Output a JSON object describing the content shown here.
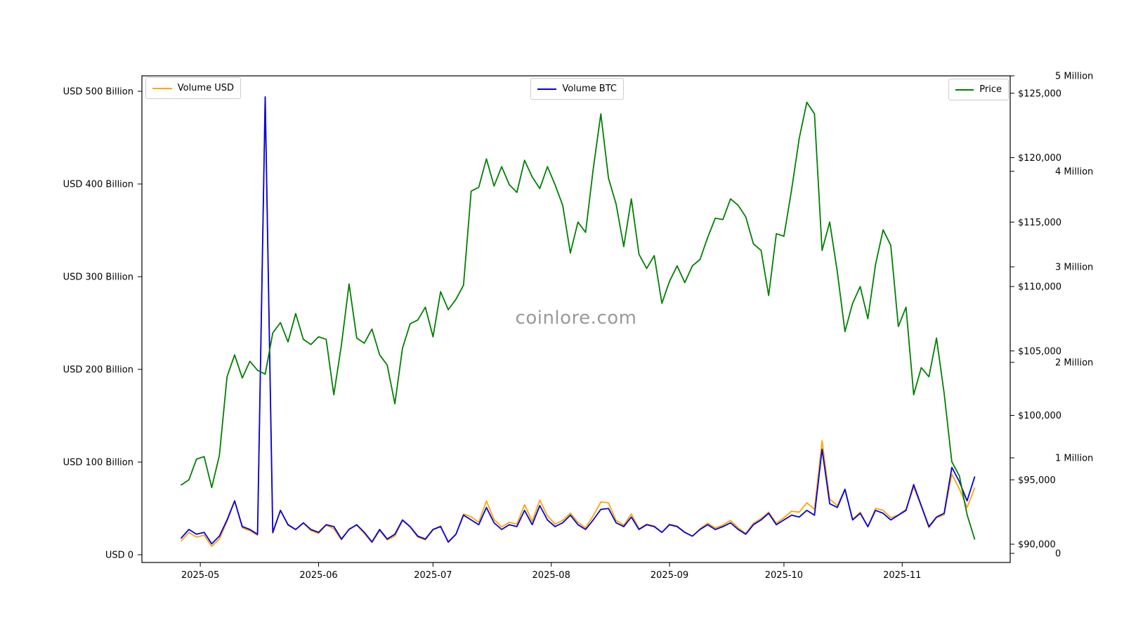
{
  "watermark": "coinlore.com",
  "chart_data": {
    "type": "line",
    "title": "",
    "grid": false,
    "dates": [
      "2025-04-26",
      "2025-04-28",
      "2025-04-30",
      "2025-05-02",
      "2025-05-04",
      "2025-05-06",
      "2025-05-08",
      "2025-05-10",
      "2025-05-12",
      "2025-05-14",
      "2025-05-16",
      "2025-05-18",
      "2025-05-20",
      "2025-05-22",
      "2025-05-24",
      "2025-05-26",
      "2025-05-28",
      "2025-05-30",
      "2025-06-01",
      "2025-06-03",
      "2025-06-05",
      "2025-06-07",
      "2025-06-09",
      "2025-06-11",
      "2025-06-13",
      "2025-06-15",
      "2025-06-17",
      "2025-06-19",
      "2025-06-21",
      "2025-06-23",
      "2025-06-25",
      "2025-06-27",
      "2025-06-29",
      "2025-07-01",
      "2025-07-03",
      "2025-07-05",
      "2025-07-07",
      "2025-07-09",
      "2025-07-11",
      "2025-07-13",
      "2025-07-15",
      "2025-07-17",
      "2025-07-19",
      "2025-07-21",
      "2025-07-23",
      "2025-07-25",
      "2025-07-27",
      "2025-07-29",
      "2025-07-31",
      "2025-08-02",
      "2025-08-04",
      "2025-08-06",
      "2025-08-08",
      "2025-08-10",
      "2025-08-12",
      "2025-08-14",
      "2025-08-16",
      "2025-08-18",
      "2025-08-20",
      "2025-08-22",
      "2025-08-24",
      "2025-08-26",
      "2025-08-28",
      "2025-08-30",
      "2025-09-01",
      "2025-09-03",
      "2025-09-05",
      "2025-09-07",
      "2025-09-09",
      "2025-09-11",
      "2025-09-13",
      "2025-09-15",
      "2025-09-17",
      "2025-09-19",
      "2025-09-21",
      "2025-09-23",
      "2025-09-25",
      "2025-09-27",
      "2025-09-29",
      "2025-10-01",
      "2025-10-03",
      "2025-10-05",
      "2025-10-07",
      "2025-10-09",
      "2025-10-11",
      "2025-10-13",
      "2025-10-15",
      "2025-10-17",
      "2025-10-19",
      "2025-10-21",
      "2025-10-23",
      "2025-10-25",
      "2025-10-27",
      "2025-10-29",
      "2025-10-31",
      "2025-11-02",
      "2025-11-04",
      "2025-11-06",
      "2025-11-08",
      "2025-11-10",
      "2025-11-12",
      "2025-11-14",
      "2025-11-16",
      "2025-11-18",
      "2025-11-20"
    ],
    "series": [
      {
        "name": "Volume USD",
        "axis": "usd",
        "unit": "billion USD",
        "color": "#FFA500",
        "values": [
          15,
          24,
          19,
          21,
          9,
          17,
          36,
          58,
          29,
          26,
          21,
          493,
          23,
          48,
          32,
          27,
          34,
          26,
          23,
          32,
          28,
          16,
          28,
          32,
          23,
          13,
          26,
          16,
          20,
          37,
          30,
          19,
          16,
          27,
          31,
          13,
          22,
          44,
          41,
          35,
          58,
          38,
          30,
          35,
          33,
          54,
          36,
          59,
          42,
          33,
          37,
          45,
          35,
          29,
          42,
          57,
          56,
          37,
          32,
          44,
          28,
          33,
          31,
          24,
          33,
          31,
          24,
          20,
          28,
          34,
          29,
          32,
          37,
          29,
          23,
          34,
          39,
          46,
          34,
          40,
          47,
          46,
          56,
          49,
          123,
          60,
          53,
          71,
          38,
          46,
          30,
          50,
          48,
          40,
          43,
          49,
          73,
          52,
          29,
          40,
          43,
          87,
          71,
          51,
          72
        ]
      },
      {
        "name": "Volume BTC",
        "axis": "btc",
        "unit": "million BTC",
        "color": "#0000E6",
        "values": [
          0.16,
          0.25,
          0.2,
          0.22,
          0.1,
          0.18,
          0.35,
          0.55,
          0.28,
          0.25,
          0.2,
          4.78,
          0.22,
          0.45,
          0.3,
          0.25,
          0.32,
          0.25,
          0.22,
          0.3,
          0.28,
          0.15,
          0.25,
          0.3,
          0.22,
          0.12,
          0.25,
          0.15,
          0.2,
          0.35,
          0.28,
          0.18,
          0.15,
          0.25,
          0.28,
          0.12,
          0.2,
          0.4,
          0.35,
          0.3,
          0.48,
          0.32,
          0.25,
          0.3,
          0.28,
          0.45,
          0.3,
          0.5,
          0.35,
          0.28,
          0.32,
          0.4,
          0.3,
          0.25,
          0.35,
          0.46,
          0.47,
          0.32,
          0.28,
          0.38,
          0.25,
          0.3,
          0.28,
          0.22,
          0.3,
          0.28,
          0.22,
          0.18,
          0.25,
          0.3,
          0.25,
          0.28,
          0.32,
          0.25,
          0.2,
          0.3,
          0.35,
          0.42,
          0.3,
          0.35,
          0.4,
          0.38,
          0.45,
          0.4,
          1.09,
          0.52,
          0.48,
          0.67,
          0.35,
          0.42,
          0.28,
          0.45,
          0.42,
          0.35,
          0.4,
          0.45,
          0.72,
          0.5,
          0.28,
          0.38,
          0.42,
          0.9,
          0.75,
          0.55,
          0.8
        ]
      },
      {
        "name": "Price",
        "axis": "price",
        "unit": "USD",
        "color": "#008000",
        "values": [
          94600,
          95000,
          96600,
          96800,
          94400,
          96900,
          103000,
          104700,
          102900,
          104200,
          103500,
          103200,
          106400,
          107200,
          105700,
          107900,
          105900,
          105500,
          106100,
          105900,
          101600,
          105500,
          110200,
          106000,
          105600,
          106700,
          104700,
          103900,
          100900,
          105200,
          107100,
          107400,
          108400,
          106100,
          109600,
          108200,
          109000,
          110100,
          117400,
          117700,
          119900,
          117800,
          119300,
          117900,
          117300,
          119800,
          118500,
          117600,
          119300,
          117900,
          116300,
          112600,
          115000,
          114200,
          119100,
          123400,
          118400,
          116400,
          113100,
          116800,
          112500,
          111400,
          112400,
          108700,
          110400,
          111600,
          110300,
          111600,
          112100,
          113800,
          115300,
          115200,
          116800,
          116300,
          115400,
          113300,
          112800,
          109300,
          114100,
          113900,
          117500,
          121500,
          124300,
          123400,
          112800,
          115000,
          111100,
          106500,
          108700,
          110000,
          107500,
          111700,
          114400,
          113200,
          106900,
          108400,
          101600,
          103700,
          103000,
          106000,
          101700,
          96400,
          95300,
          92300,
          90400
        ]
      }
    ],
    "axes": {
      "left_usd": {
        "position": "left",
        "ticks": [
          {
            "value": 0,
            "label": "USD 0"
          },
          {
            "value": 100,
            "label": "USD 100 Billion"
          },
          {
            "value": 200,
            "label": "USD 200 Billion"
          },
          {
            "value": 300,
            "label": "USD 300 Billion"
          },
          {
            "value": 400,
            "label": "USD 400 Billion"
          },
          {
            "value": 500,
            "label": "USD 500 Billion"
          }
        ]
      },
      "right_price": {
        "position": "right-inner",
        "ticks": [
          {
            "value": 90000,
            "label": "$90,000"
          },
          {
            "value": 95000,
            "label": "$95,000"
          },
          {
            "value": 100000,
            "label": "$100,000"
          },
          {
            "value": 105000,
            "label": "$105,000"
          },
          {
            "value": 110000,
            "label": "$110,000"
          },
          {
            "value": 115000,
            "label": "$115,000"
          },
          {
            "value": 120000,
            "label": "$120,000"
          },
          {
            "value": 125000,
            "label": "$125,000"
          }
        ]
      },
      "right_btc": {
        "position": "right-outer",
        "ticks": [
          {
            "value": 0,
            "label": "0"
          },
          {
            "value": 1,
            "label": "1 Million"
          },
          {
            "value": 2,
            "label": "2 Million"
          },
          {
            "value": 3,
            "label": "3 Million"
          },
          {
            "value": 4,
            "label": "4 Million"
          },
          {
            "value": 5,
            "label": "5 Million"
          }
        ]
      },
      "x": {
        "ticks": [
          {
            "date": "2025-05-01",
            "label": "2025-05"
          },
          {
            "date": "2025-06-01",
            "label": "2025-06"
          },
          {
            "date": "2025-07-01",
            "label": "2025-07"
          },
          {
            "date": "2025-08-01",
            "label": "2025-08"
          },
          {
            "date": "2025-09-01",
            "label": "2025-09"
          },
          {
            "date": "2025-10-01",
            "label": "2025-10"
          },
          {
            "date": "2025-11-01",
            "label": "2025-11"
          }
        ]
      }
    },
    "legend": [
      {
        "label": "Volume USD",
        "color": "#FFA500"
      },
      {
        "label": "Volume BTC",
        "color": "#0000E6"
      },
      {
        "label": "Price",
        "color": "#008000"
      }
    ]
  }
}
